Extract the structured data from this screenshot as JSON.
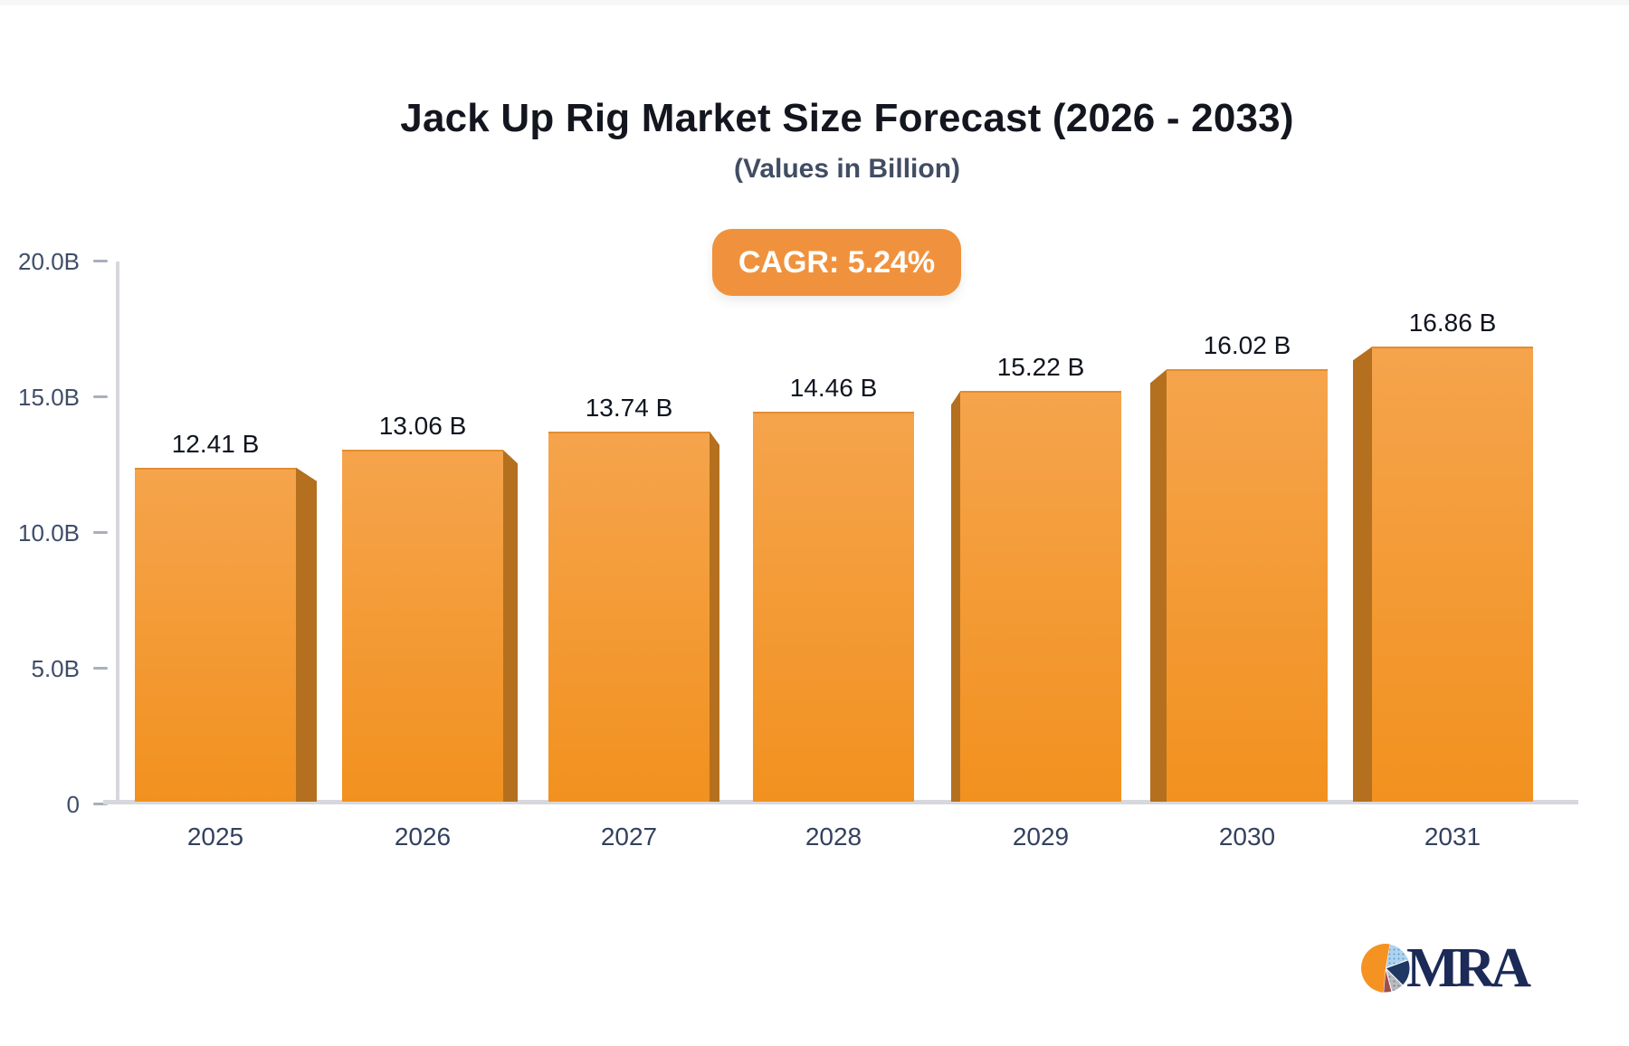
{
  "chart_data": {
    "type": "bar",
    "title": "Jack Up Rig Market Size Forecast (2026 - 2033)",
    "subtitle": "(Values in Billion)",
    "categories": [
      "2025",
      "2026",
      "2027",
      "2028",
      "2029",
      "2030",
      "2031"
    ],
    "values": [
      12.41,
      13.06,
      13.74,
      14.46,
      15.22,
      16.02,
      16.86
    ],
    "bar_labels": [
      "12.41 B",
      "13.06 B",
      "13.74 B",
      "14.46 B",
      "15.22 B",
      "16.02 B",
      "16.86 B"
    ],
    "unit": "B",
    "ytick_labels": [
      "20.0B",
      "15.0B",
      "10.0B",
      "5.0B",
      "0"
    ],
    "ytick_values": [
      20,
      15,
      10,
      5,
      0
    ],
    "ylim": [
      0,
      20
    ],
    "grid": false,
    "legend": false,
    "bar_style": "3d-perspective",
    "colors": {
      "bar_top": "#f5a44c",
      "bar_bottom": "#f2911f",
      "bar_side": "#b4701e",
      "axis_line": "#d7d8dd",
      "tick": "#a9afbb",
      "axis_label": "#3e4d68",
      "value_label": "#10151f"
    }
  },
  "badge": {
    "label": "CAGR: 5.24%",
    "background": "#f0923d",
    "text_color": "#ffffff"
  },
  "logo": {
    "text": "MRA",
    "text_color": "#1b2a57",
    "pie_colors": {
      "orange": "#f59322",
      "light_blue": "#aed3ee",
      "navy": "#1f3864",
      "gray": "#b9bac0",
      "maroon": "#9c5050"
    }
  }
}
